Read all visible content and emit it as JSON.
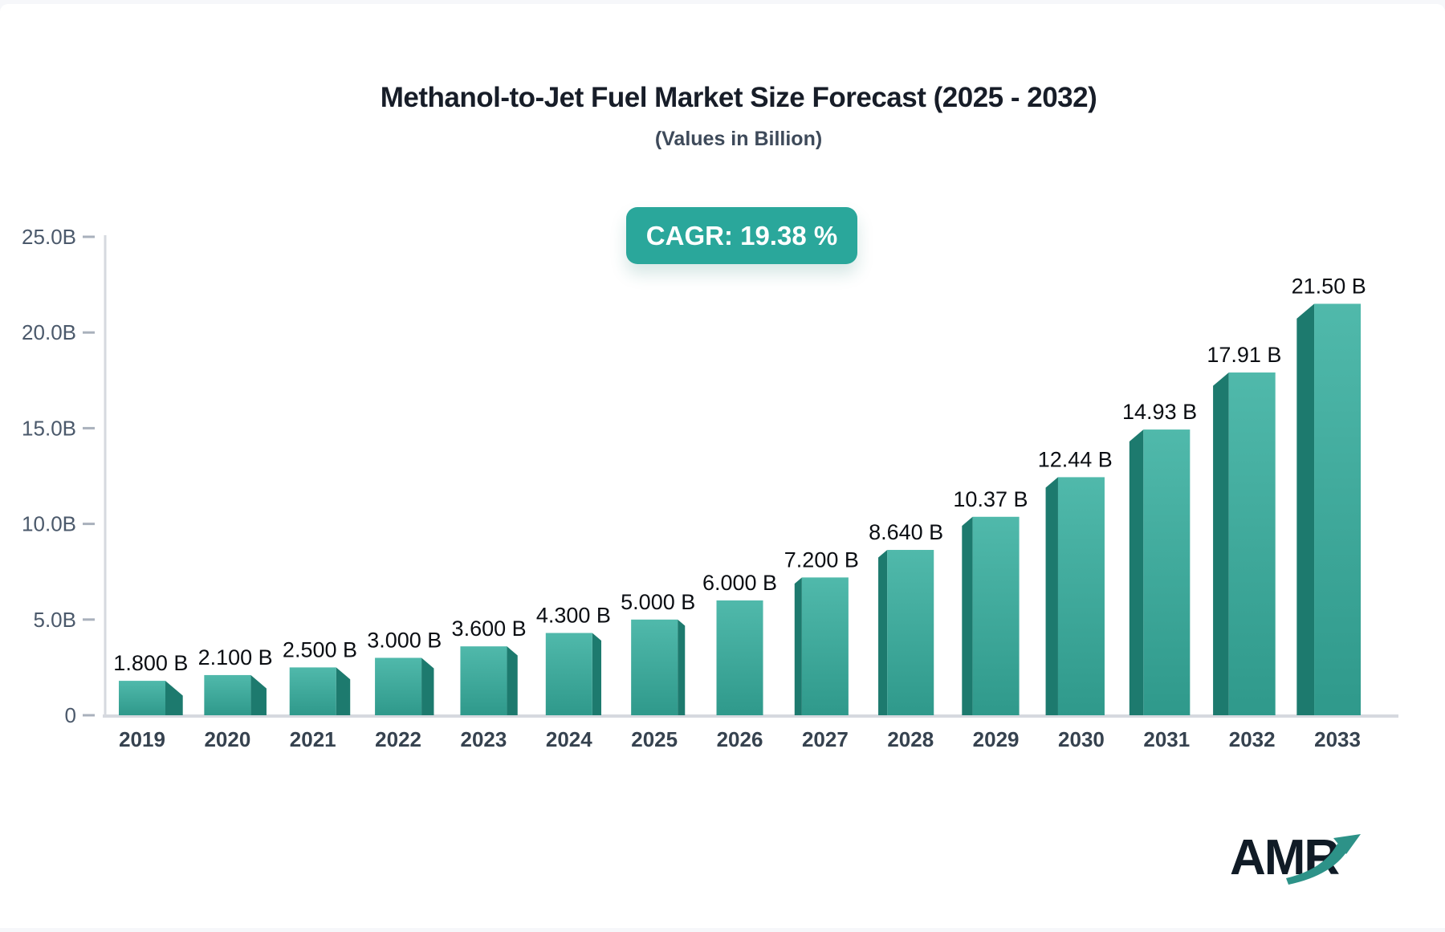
{
  "page": {
    "background": "#f6f7fa",
    "card_background": "#ffffff"
  },
  "header": {
    "title": "Methanol-to-Jet Fuel Market Size Forecast (2025 - 2032)",
    "subtitle": "(Values in Billion)",
    "cagr_label": "CAGR: 19.38 %",
    "badge_color": "#2aa79b"
  },
  "chart_data": {
    "type": "bar",
    "title": "Methanol-to-Jet Fuel Market Size Forecast (2025 - 2032)",
    "subtitle": "(Values in Billion)",
    "cagr_percent": 19.38,
    "unit": "Billion",
    "categories": [
      "2019",
      "2020",
      "2021",
      "2022",
      "2023",
      "2024",
      "2025",
      "2026",
      "2027",
      "2028",
      "2029",
      "2030",
      "2031",
      "2032",
      "2033"
    ],
    "values": [
      1.8,
      2.1,
      2.5,
      3.0,
      3.6,
      4.3,
      5.0,
      6.0,
      7.2,
      8.64,
      10.37,
      12.44,
      14.93,
      17.91,
      21.5
    ],
    "value_labels": [
      "1.800 B",
      "2.100 B",
      "2.500 B",
      "3.000 B",
      "3.600 B",
      "4.300 B",
      "5.000 B",
      "6.000 B",
      "7.200 B",
      "8.640 B",
      "10.37 B",
      "12.44 B",
      "14.93 B",
      "17.91 B",
      "21.50 B"
    ],
    "xlabel": "",
    "ylabel": "",
    "ylim": [
      0,
      25
    ],
    "y_ticks": [
      {
        "label": "25.0B",
        "value": 25
      },
      {
        "label": "20.0B",
        "value": 20
      },
      {
        "label": "15.0B",
        "value": 15
      },
      {
        "label": "10.0B",
        "value": 10
      },
      {
        "label": "5.0B",
        "value": 5
      },
      {
        "label": "0",
        "value": 0
      }
    ],
    "grid": false,
    "legend": false,
    "bar_style": "3d-perspective",
    "bar_color_front_top": "#50b9ab",
    "bar_color_front_bottom": "#2f998b",
    "bar_color_side": "#1d7a6e",
    "axis_line_color": "#d6d9df",
    "tick_color": "#a9b1bc",
    "y_label_color": "#4b596b",
    "x_label_color": "#36424f",
    "value_label_color": "#0b0e13"
  },
  "footer": {
    "logo_text": "AMR",
    "logo_text_color": "#101b26",
    "logo_arrow_color": "#2d9288"
  }
}
